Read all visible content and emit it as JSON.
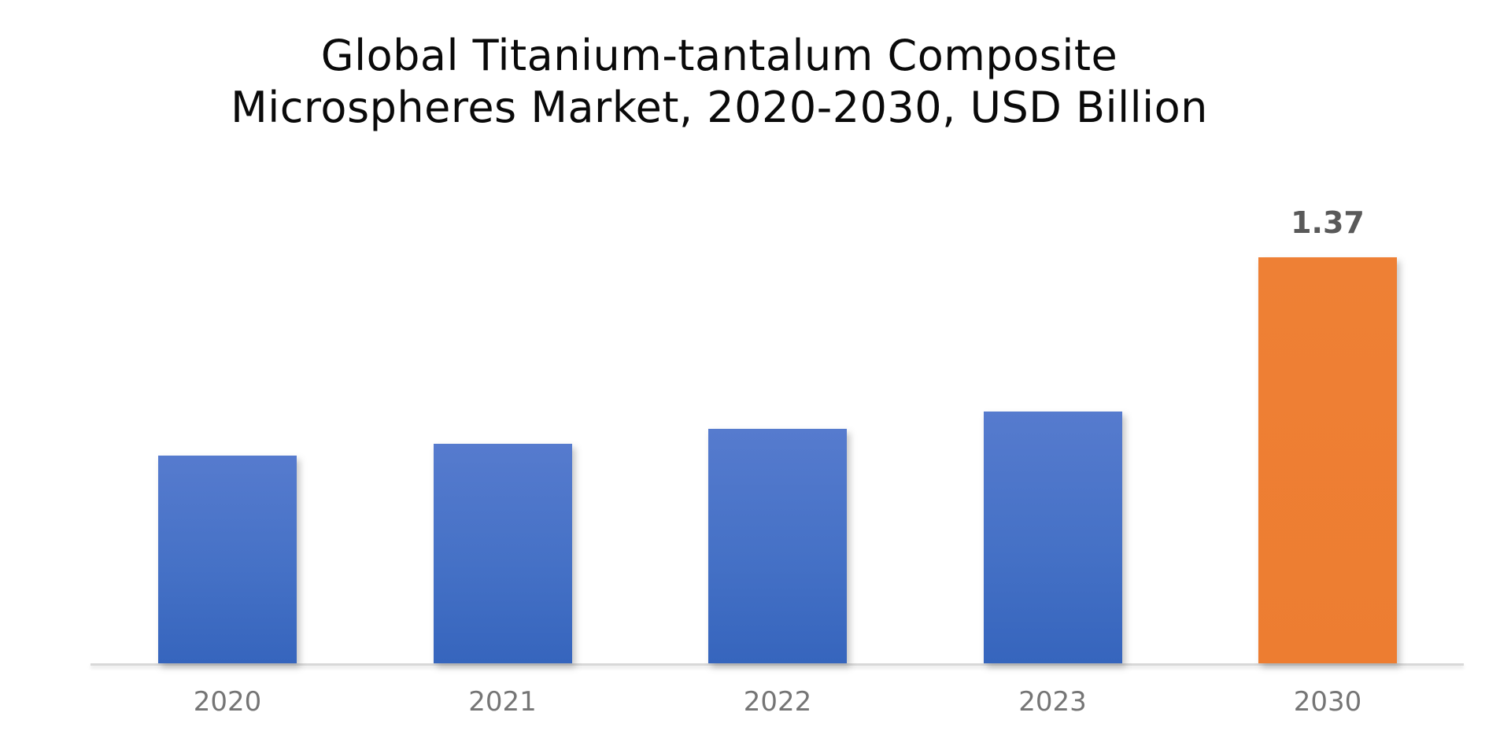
{
  "page": {
    "background": "#ffffff"
  },
  "chart_data": {
    "type": "bar",
    "title": "Global Titanium-tantalum Composite Microspheres Market, 2020-2030, USD Billion",
    "title_line1": "Global Titanium-tantalum Composite",
    "title_line2": "Microspheres Market, 2020-2030, USD Billion",
    "xlabel": "",
    "ylabel": "",
    "unit": "USD Billion",
    "categories": [
      "2020",
      "2021",
      "2022",
      "2023",
      "2030"
    ],
    "values": [
      0.7,
      0.74,
      0.79,
      0.85,
      1.37
    ],
    "data_labels": [
      null,
      null,
      null,
      null,
      "1.37"
    ],
    "bar_colors": [
      "blue",
      "blue",
      "blue",
      "blue",
      "orange"
    ],
    "highlight_category": "2030",
    "ylim": [
      0,
      1.5
    ],
    "grid": false,
    "legend": false,
    "colors": {
      "blue_bar_top": "#567BCE",
      "blue_bar_bottom": "#3665BD",
      "orange_bar": "#ED7D31",
      "axis_line": "#D8D8D8",
      "tick_label": "#757575",
      "data_label": "#595959",
      "title": "#0A0A0A"
    }
  }
}
